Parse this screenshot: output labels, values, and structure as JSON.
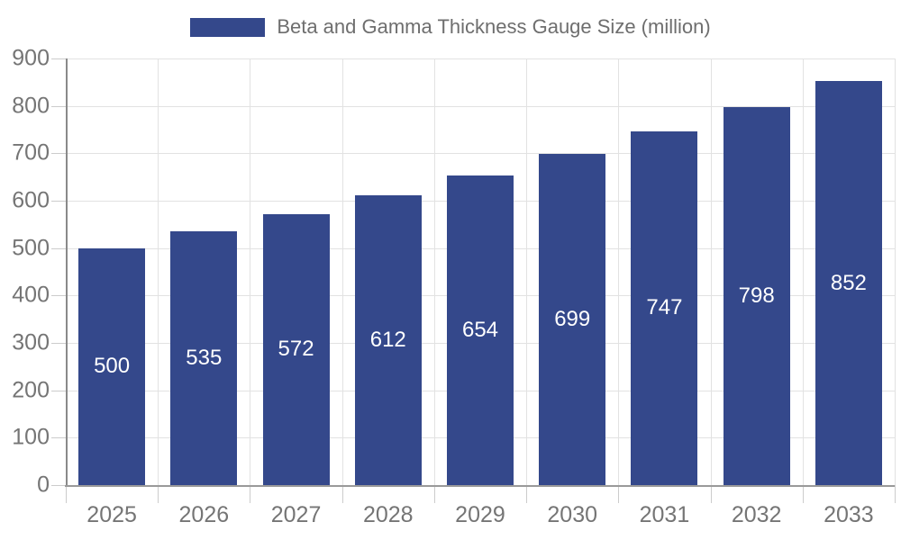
{
  "legend": {
    "label": "Beta and Gamma Thickness Gauge Size (million)"
  },
  "chart_data": {
    "type": "bar",
    "title": "Beta and Gamma Thickness Gauge Size (million)",
    "categories": [
      "2025",
      "2026",
      "2027",
      "2028",
      "2029",
      "2030",
      "2031",
      "2032",
      "2033"
    ],
    "values": [
      500,
      535,
      572,
      612,
      654,
      699,
      747,
      798,
      852
    ],
    "xlabel": "",
    "ylabel": "",
    "ylim": [
      0,
      900
    ],
    "ytick_interval": 100,
    "yticks": [
      0,
      100,
      200,
      300,
      400,
      500,
      600,
      700,
      800,
      900
    ],
    "grid": true,
    "legend_position": "top-center",
    "bar_color": "#34488b",
    "value_label_color": "#ffffff",
    "axis_label_color": "#757575",
    "title_color": "#6e6e6e",
    "gridline_color": "#e2e2e2",
    "axis_line_color": "#8a8a8a"
  }
}
